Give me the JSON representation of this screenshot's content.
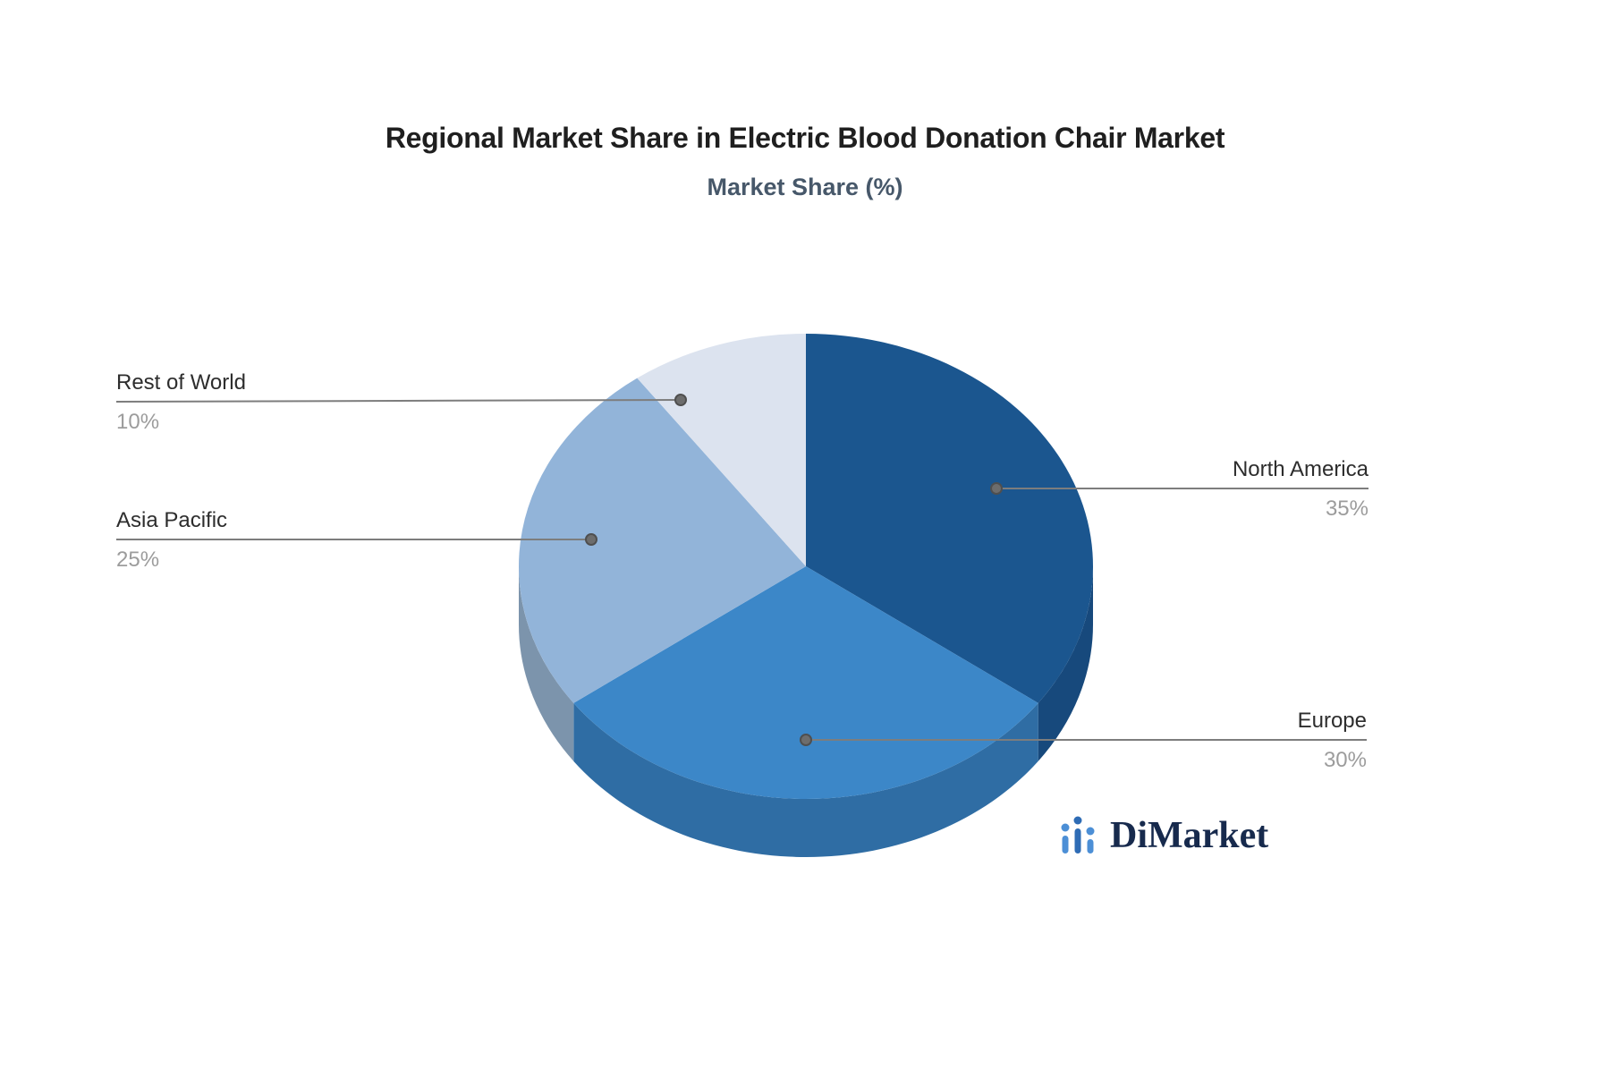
{
  "title": "Regional Market Share in Electric Blood Donation Chair Market",
  "subtitle": "Market Share (%)",
  "logo": {
    "text": "DiMarket"
  },
  "chart_data": {
    "type": "pie",
    "style": "3d-pie",
    "title": "Regional Market Share in Electric Blood Donation Chair Market",
    "subtitle": "Market Share (%)",
    "unit": "%",
    "legend_position": "callout-labels",
    "start_angle_deg": 0,
    "direction": "clockwise",
    "colors": {
      "leader_line": "#7d7d7d",
      "leader_dot": "#6d6d6d",
      "label_name": "#2d2d2d",
      "label_value": "#9c9c9c",
      "subtitle_color": "#47586a"
    },
    "slices": [
      {
        "label": "North America",
        "value": 35,
        "display": "35%",
        "color": "#1B568F",
        "side_color": "#17497C"
      },
      {
        "label": "Europe",
        "value": 30,
        "display": "30%",
        "color": "#3C87C8",
        "side_color": "#2F6DA4"
      },
      {
        "label": "Asia Pacific",
        "value": 25,
        "display": "25%",
        "color": "#92B4D9",
        "side_color": "#7C94AC"
      },
      {
        "label": "Rest of World",
        "value": 10,
        "display": "10%",
        "color": "#DCE3EF",
        "side_color": "#B9C3D4"
      }
    ]
  }
}
